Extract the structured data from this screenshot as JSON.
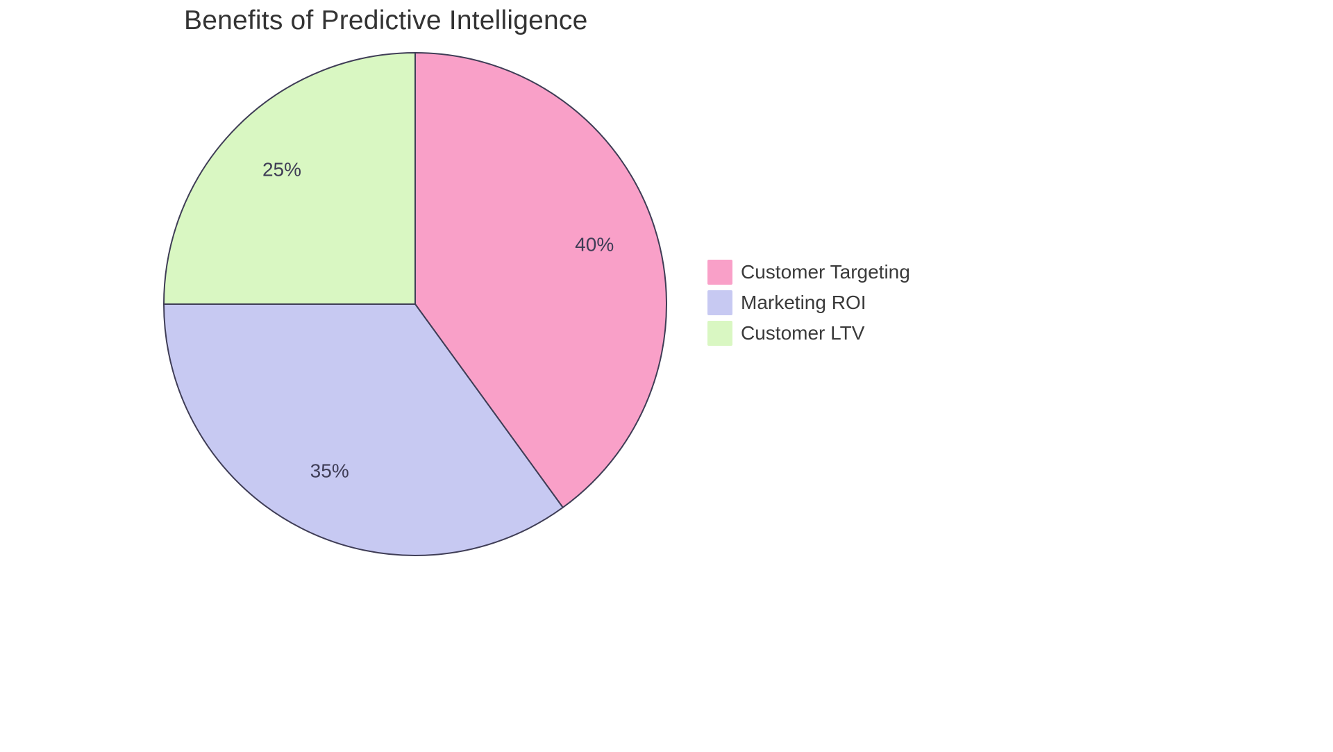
{
  "page": {
    "background": "#ffffff"
  },
  "chart_data": {
    "type": "pie",
    "title": "Benefits of Predictive Intelligence",
    "labels": [
      "Customer Targeting",
      "Marketing ROI",
      "Customer LTV"
    ],
    "values": [
      40,
      35,
      25
    ],
    "value_labels": [
      "40%",
      "35%",
      "25%"
    ],
    "colors": [
      "#F9A0C8",
      "#C7C9F2",
      "#D9F7C2"
    ],
    "outline_color": "#3F3D56",
    "slice_label_color": "#3F3D56",
    "title_color": "#333333",
    "legend_text_color": "#3a3a3a",
    "legend_position": "right",
    "start_angle_deg": -90,
    "direction": "clockwise"
  }
}
